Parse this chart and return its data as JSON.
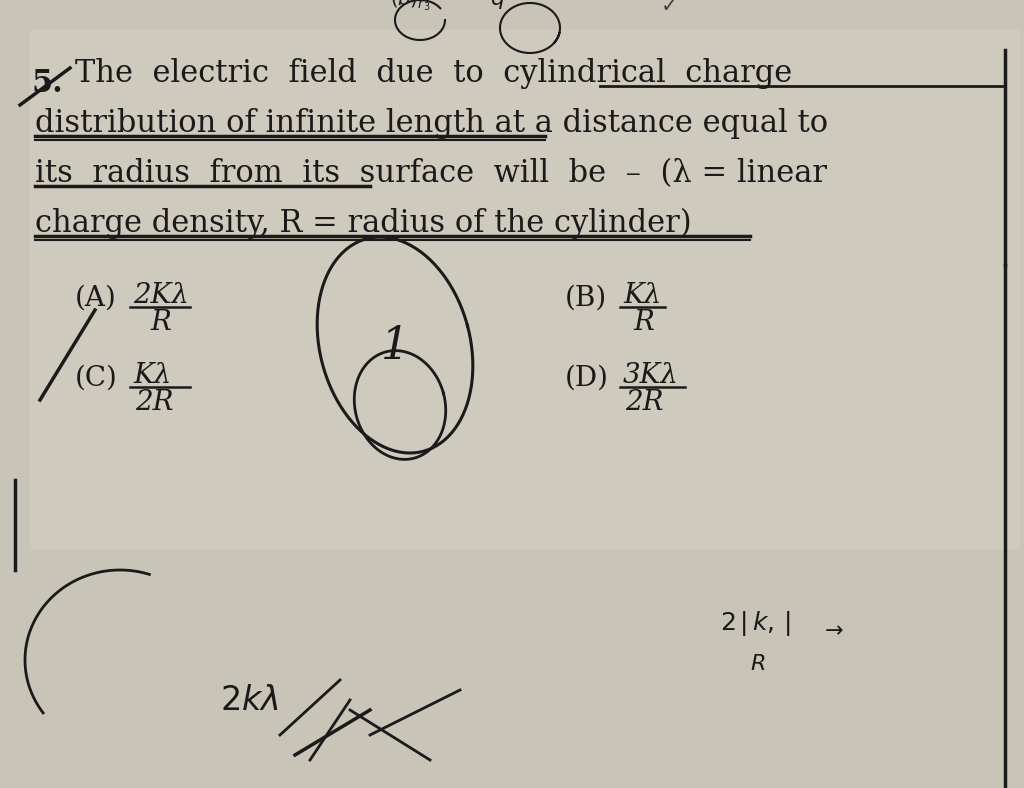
{
  "background_color": "#c8c4b8",
  "text_color": "#1a1a1a",
  "font_size_question": 22,
  "font_size_options": 20,
  "font_size_number": 22,
  "line1": "The  electric  field  due  to  cylindrical  charge",
  "line2": "distribution of infinite length at a distance equal to",
  "line3": "its  radius  from  its  surface  will  be  –  (λ = linear",
  "line4": "charge density, R = radius of the cylinder)",
  "opt_A_num": "2Kλ",
  "opt_A_den": "R",
  "opt_B_num": "Kλ",
  "opt_B_den": "R",
  "opt_C_num": "Kλ",
  "opt_C_den": "2R",
  "opt_D_num": "3Kλ",
  "opt_D_den": "2R"
}
